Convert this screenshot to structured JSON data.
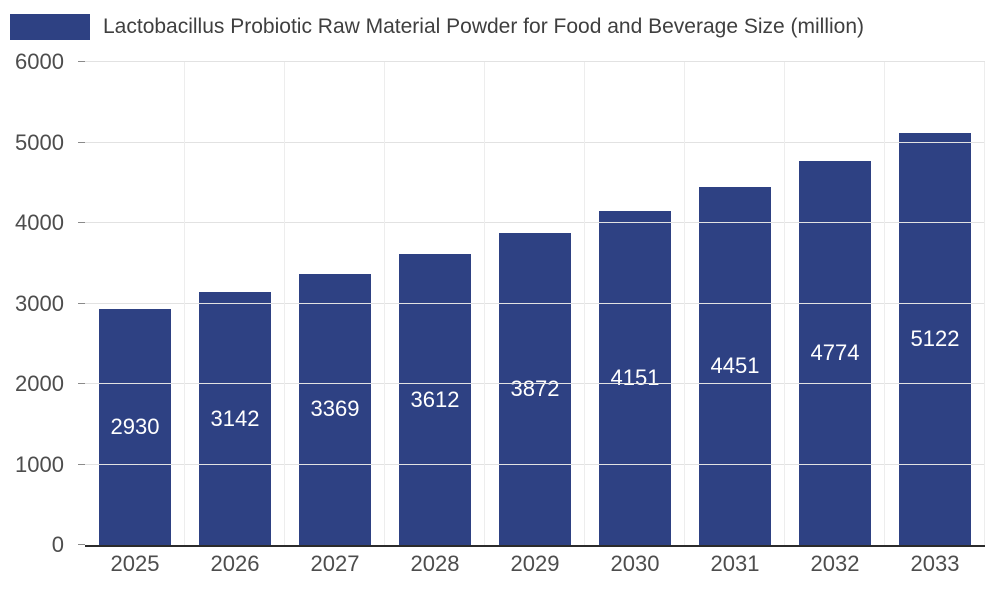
{
  "header": {
    "title": "Lactobacillus Probiotic Raw Material Powder for Food and Beverage Size (million)"
  },
  "colors": {
    "bar": "#2E4183",
    "value_label": "#ffffff",
    "axis_text": "#4d4d4d",
    "gridline": "#e2e2e2",
    "axis_line": "#2b2b2b"
  },
  "chart_data": {
    "type": "bar",
    "title": "Lactobacillus Probiotic Raw Material Powder for Food and Beverage Size (million)",
    "categories": [
      "2025",
      "2026",
      "2027",
      "2028",
      "2029",
      "2030",
      "2031",
      "2032",
      "2033"
    ],
    "values": [
      2930,
      3142,
      3369,
      3612,
      3872,
      4151,
      4451,
      4774,
      5122
    ],
    "xlabel": "",
    "ylabel": "",
    "ylim": [
      0,
      6000
    ],
    "yticks": [
      0,
      1000,
      2000,
      3000,
      4000,
      5000,
      6000
    ],
    "grid": true,
    "legend_position": "top-left",
    "value_labels": "inside-center"
  }
}
